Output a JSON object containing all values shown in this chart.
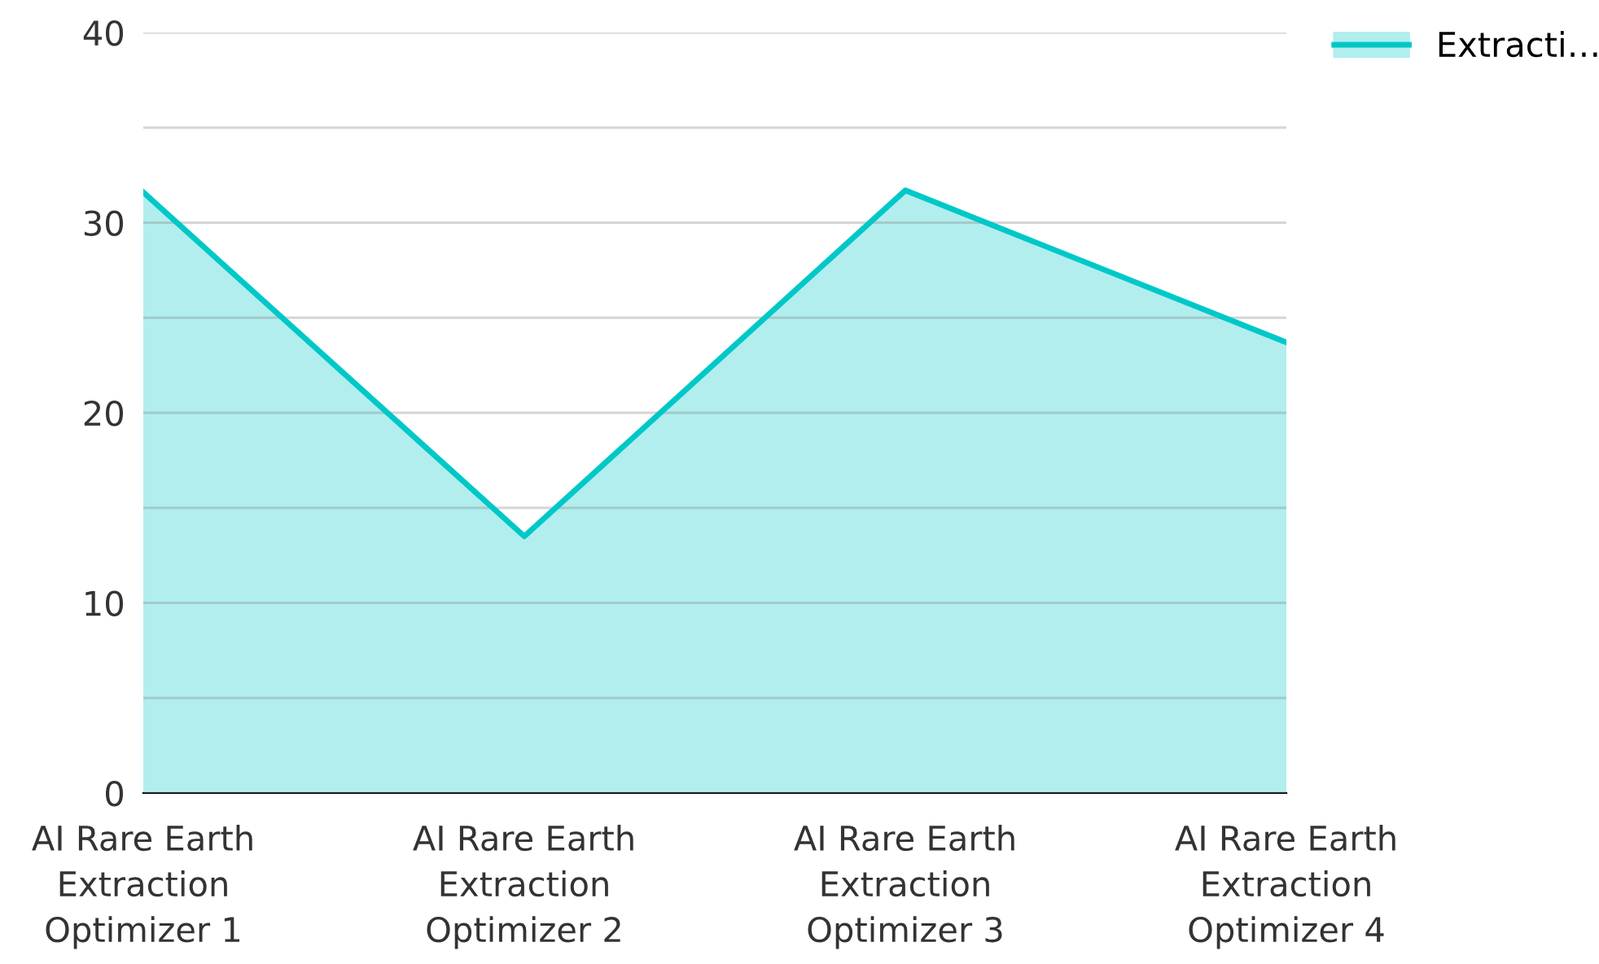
{
  "chart_data": {
    "type": "area",
    "categories": [
      "AI Rare Earth\nExtraction\nOptimizer 1",
      "AI Rare Earth\nExtraction\nOptimizer 2",
      "AI Rare Earth\nExtraction\nOptimizer 3",
      "AI Rare Earth\nExtraction\nOptimizer 4"
    ],
    "series": [
      {
        "name": "Extracti…",
        "color": "#00c8c8",
        "values": [
          31.6,
          13.5,
          31.7,
          23.7
        ]
      }
    ],
    "ylim": [
      0,
      40
    ],
    "yticks": [
      0,
      {
        "value": 5,
        "label": null
      },
      10,
      {
        "value": 15,
        "label": null
      },
      20,
      {
        "value": 25,
        "label": null
      },
      30,
      {
        "value": 35,
        "label": null
      },
      40
    ],
    "grid": "y",
    "legend": "top right",
    "marker": "none"
  }
}
